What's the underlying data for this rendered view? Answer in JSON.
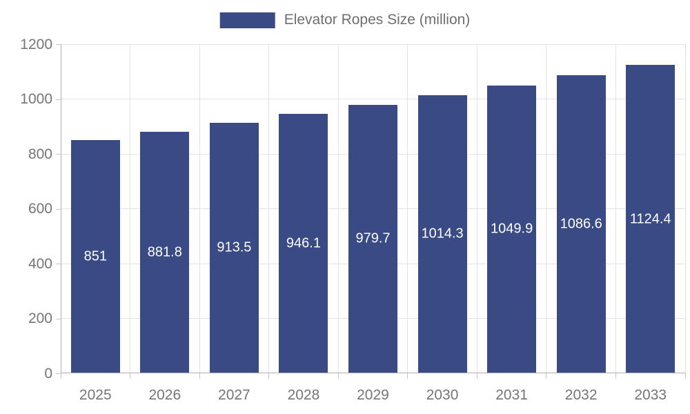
{
  "legend": {
    "label": "Elevator Ropes Size (million)"
  },
  "chart_data": {
    "type": "bar",
    "title": "Elevator Ropes Size (million)",
    "categories": [
      "2025",
      "2026",
      "2027",
      "2028",
      "2029",
      "2030",
      "2031",
      "2032",
      "2033"
    ],
    "values": [
      851,
      881.8,
      913.5,
      946.1,
      979.7,
      1014.3,
      1049.9,
      1086.6,
      1124.4
    ],
    "value_labels": [
      "851",
      "881.8",
      "913.5",
      "946.1",
      "979.7",
      "1014.3",
      "1049.9",
      "1086.6",
      "1124.4"
    ],
    "xlabel": "",
    "ylabel": "",
    "ylim": [
      0,
      1200
    ],
    "yticks": [
      0,
      200,
      400,
      600,
      800,
      1000,
      1200
    ],
    "grid": true,
    "legend_position": "top-center",
    "bar_color": "#3a4a85",
    "bar_label_color": "#ffffff",
    "axis_text_color": "#757575",
    "grid_color": "#e3e3e3",
    "axis_line_color": "#aeaeae"
  }
}
